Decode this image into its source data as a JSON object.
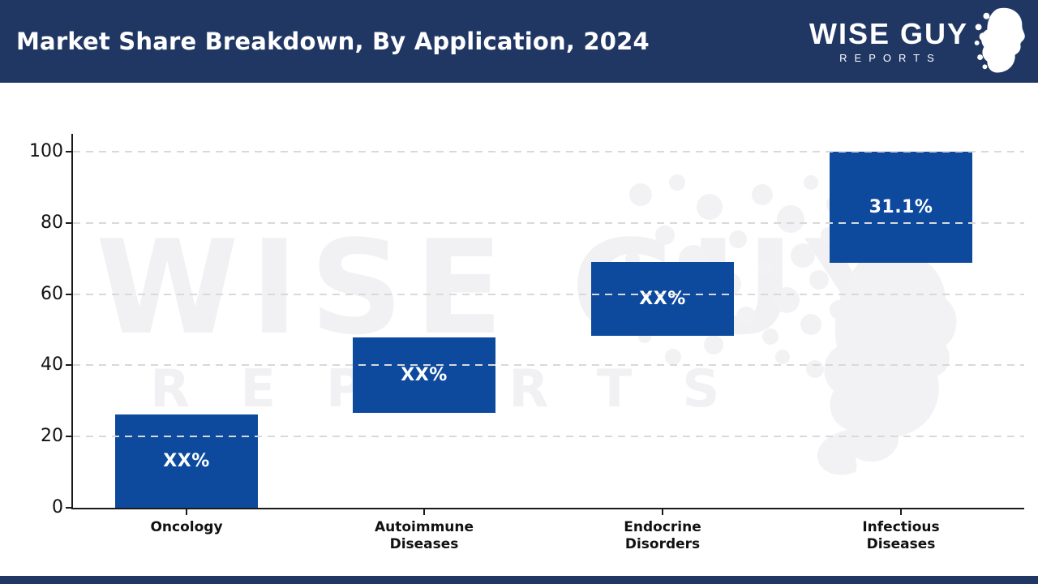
{
  "header": {
    "title": "Market Share Breakdown, By Application, 2024",
    "logo": {
      "brand": "WISE GUY",
      "sub": "REPORTS"
    }
  },
  "watermark": {
    "line1": "WISE GUY",
    "line2": "REPORTS"
  },
  "colors": {
    "header_bg": "#203764",
    "footer_bg": "#203764",
    "bar_fill": "#0d4a9e",
    "bar_label": "#ffffff",
    "gridline": "#d9d9d9",
    "axis": "#1a1a1a",
    "watermark": "#f2f2f4",
    "title_text": "#ffffff"
  },
  "chart_data": {
    "type": "bar",
    "subtype": "waterfall-floating",
    "title": "Market Share Breakdown, By Application, 2024",
    "unit": "%",
    "categories": [
      "Oncology",
      "Autoimmune Diseases",
      "Endocrine Disorders",
      "Infectious Diseases"
    ],
    "category_lines": [
      [
        "Oncology"
      ],
      [
        "Autoimmune",
        "Diseases"
      ],
      [
        "Endocrine",
        "Disorders"
      ],
      [
        "Infectious",
        "Diseases"
      ]
    ],
    "segments": [
      {
        "category": "Oncology",
        "start": 0,
        "end": 26.2,
        "label": "XX%"
      },
      {
        "category": "Autoimmune Diseases",
        "start": 26.6,
        "end": 47.8,
        "label": "XX%"
      },
      {
        "category": "Endocrine Disorders",
        "start": 48.3,
        "end": 69.0,
        "label": "XX%"
      },
      {
        "category": "Infectious Diseases",
        "start": 68.9,
        "end": 100.0,
        "label": "31.1%"
      }
    ],
    "yticks": [
      0,
      20,
      40,
      60,
      80,
      100
    ],
    "ylim": [
      0,
      105
    ],
    "grid": "horizontal-dashed",
    "legend": "none"
  }
}
